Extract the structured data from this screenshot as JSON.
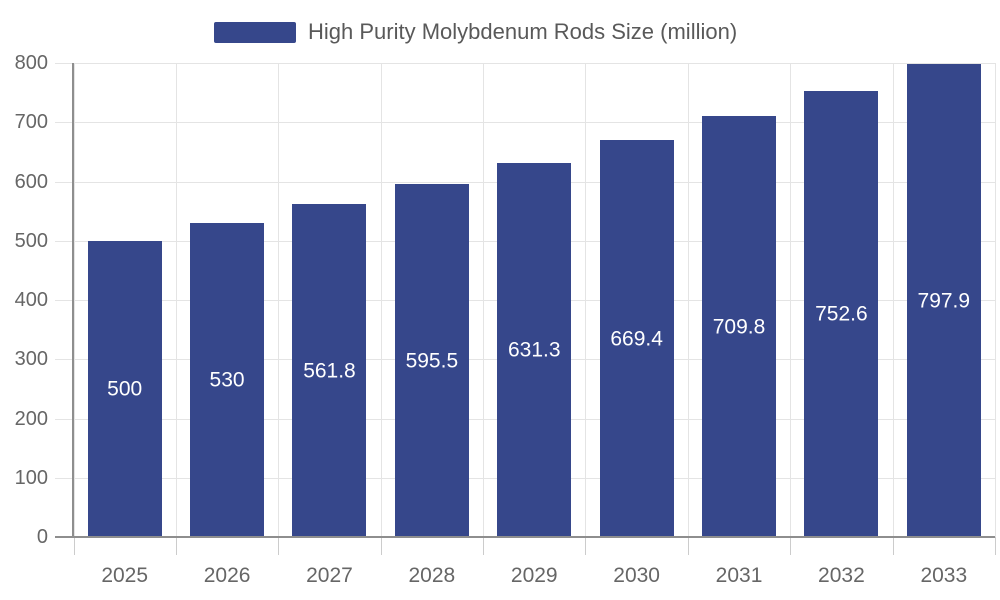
{
  "chart_data": {
    "type": "bar",
    "title": "High Purity Molybdenum Rods Size (million)",
    "legend": {
      "label": "High Purity Molybdenum Rods Size (million)",
      "position": "top"
    },
    "categories": [
      "2025",
      "2026",
      "2027",
      "2028",
      "2029",
      "2030",
      "2031",
      "2032",
      "2033"
    ],
    "series": [
      {
        "name": "High Purity Molybdenum Rods Size (million)",
        "values": [
          500,
          530,
          561.8,
          595.5,
          631.3,
          669.4,
          709.8,
          752.6,
          797.9
        ]
      }
    ],
    "value_labels": [
      "500",
      "530",
      "561.8",
      "595.5",
      "631.3",
      "669.4",
      "709.8",
      "752.6",
      "797.9"
    ],
    "xlabel": "",
    "ylabel": "",
    "ylim": [
      0,
      800
    ],
    "yticks": [
      0,
      100,
      200,
      300,
      400,
      500,
      600,
      700,
      800
    ],
    "grid": true,
    "colors": {
      "bar": "#36478B",
      "bar_value_text": "#ffffff",
      "axis_label": "#666666",
      "legend_text": "#595959",
      "gridline": "#e4e4e4",
      "tick": "#cccccc",
      "axis_line": "#8e8e8e",
      "background": "#ffffff"
    }
  }
}
